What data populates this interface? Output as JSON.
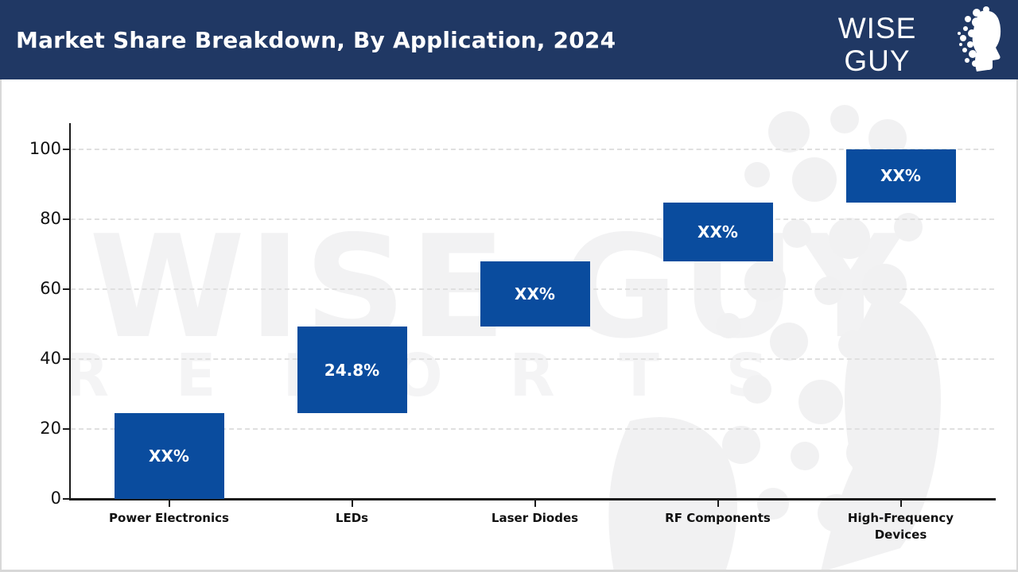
{
  "header": {
    "title": "Market Share Breakdown, By Application, 2024",
    "bg_color": "#203864",
    "logo": {
      "line1": "WISE GUY",
      "line2": "R E P O R T S"
    }
  },
  "watermark": {
    "line1": "WISE GUY",
    "line2": "REPORTS"
  },
  "chart_data": {
    "type": "bar",
    "subtype": "waterfall",
    "title": "Market Share Breakdown, By Application, 2024",
    "categories": [
      "Power Electronics",
      "LEDs",
      "Laser Diodes",
      "RF Components",
      "High-Frequency Devices"
    ],
    "segments": [
      {
        "category": "Power Electronics",
        "start": 0,
        "end": 24.5,
        "label": "XX%"
      },
      {
        "category": "LEDs",
        "start": 24.5,
        "end": 49.3,
        "label": "24.8%"
      },
      {
        "category": "Laser Diodes",
        "start": 49.3,
        "end": 68.0,
        "label": "XX%"
      },
      {
        "category": "RF Components",
        "start": 68.0,
        "end": 84.8,
        "label": "XX%"
      },
      {
        "category": "High-Frequency Devices",
        "start": 84.8,
        "end": 100.0,
        "label": "XX%"
      }
    ],
    "xlabel": "",
    "ylabel": "",
    "yticks": [
      0,
      20,
      40,
      60,
      80,
      100
    ],
    "ytick_labels": [
      "0",
      "20",
      "40",
      "60",
      "80",
      "100"
    ],
    "ylim": [
      0,
      106
    ],
    "grid": "horizontal-dashed",
    "legend": "none",
    "bar_color": "#0a4c9e",
    "bar_label_color": "#ffffff"
  }
}
